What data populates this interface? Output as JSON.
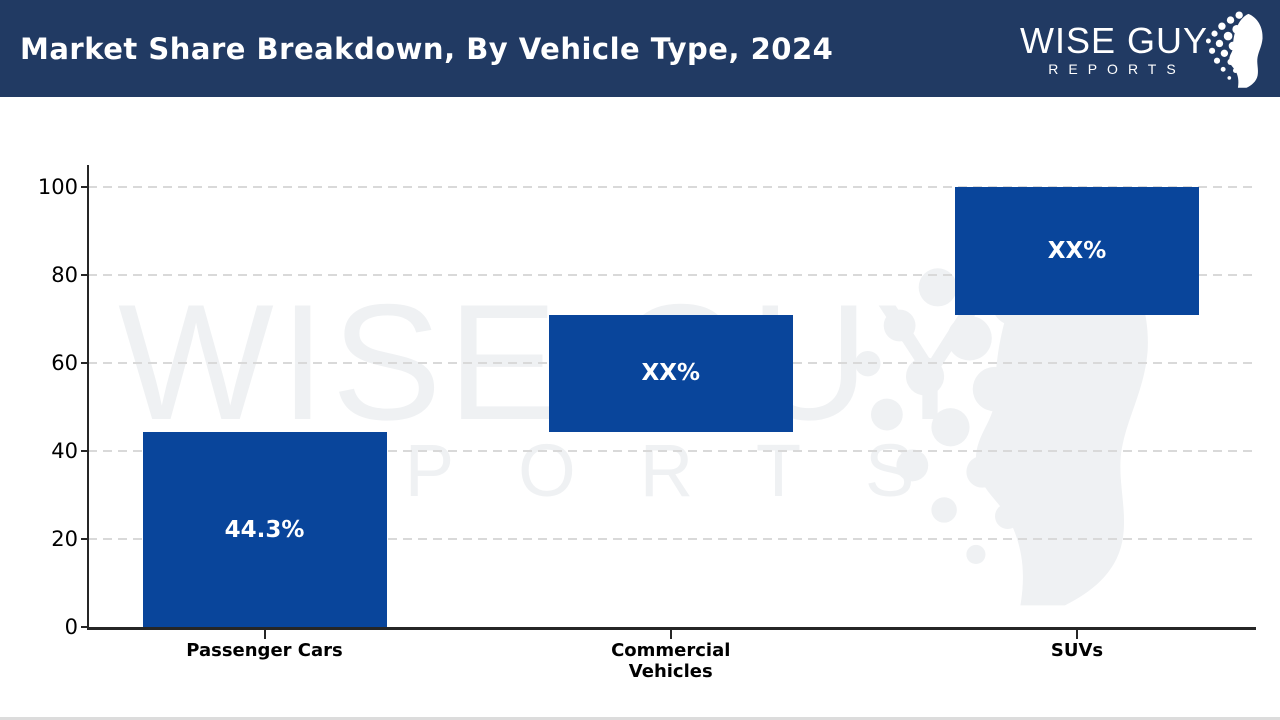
{
  "header": {
    "title": "Market Share Breakdown, By Vehicle Type, 2024",
    "logo": {
      "line1": "WISE GUY",
      "line2": "REPORTS",
      "face_icon": "dotted-face-profile-icon"
    }
  },
  "watermark": {
    "line1": "WISE GUY",
    "line2": "REPORTS"
  },
  "colors": {
    "header_background": "#213a63",
    "bar_blue": "#09459b",
    "bar_label": "#ffffff",
    "axis": "#262626",
    "gridline": "#d9d9d9",
    "watermark": "#eff1f3",
    "title_text": "#ffffff"
  },
  "chart_data": {
    "type": "bar",
    "subtype": "waterfall",
    "title": "Market Share Breakdown, By Vehicle Type, 2024",
    "categories": [
      "Passenger Cars",
      "Commercial Vehicles",
      "SUVs"
    ],
    "segments": [
      {
        "category": "Passenger Cars",
        "start": 0,
        "end": 44.3,
        "label": "44.3%"
      },
      {
        "category": "Commercial Vehicles",
        "start": 44.3,
        "end": 71,
        "label": "XX%"
      },
      {
        "category": "SUVs",
        "start": 71,
        "end": 100,
        "label": "XX%"
      }
    ],
    "ylim": [
      0,
      100
    ],
    "yticks": [
      0,
      20,
      40,
      60,
      80,
      100
    ],
    "xlabel": "",
    "ylabel": "",
    "grid": "horizontal-dashed",
    "legend": "none",
    "bar_color": "#09459b",
    "value_label_color": "#ffffff"
  }
}
